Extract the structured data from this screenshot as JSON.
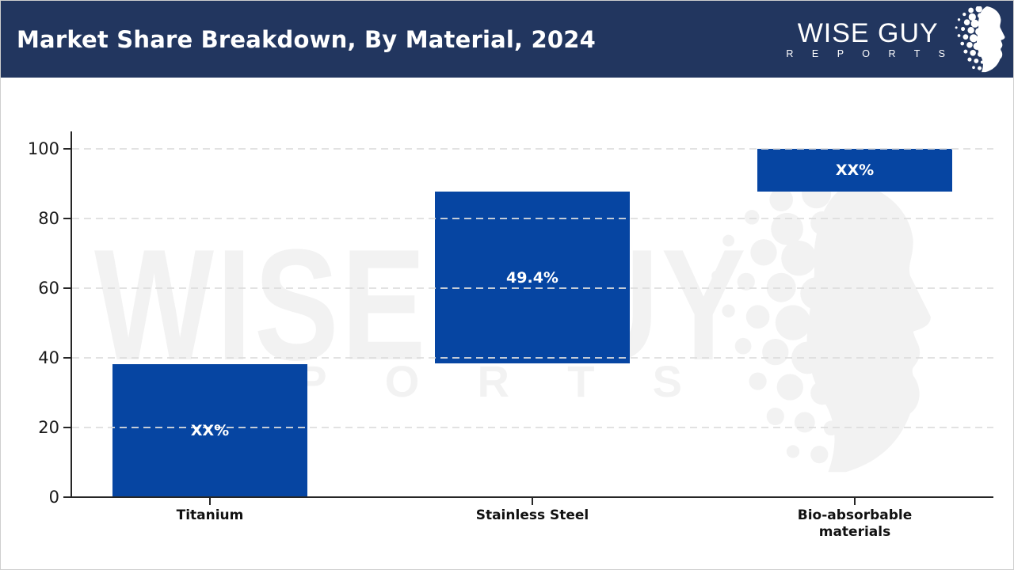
{
  "header": {
    "title": "Market Share Breakdown, By Material, 2024",
    "logo": {
      "name": "WISE GUY",
      "tagline": "R E P O R T S"
    }
  },
  "watermark": {
    "name": "WISE GUY",
    "tagline_letters": [
      "R",
      "E",
      "P",
      "O",
      "R",
      "T",
      "S"
    ]
  },
  "chart_data": {
    "type": "bar",
    "subtype": "floating-waterfall",
    "title": "Market Share Breakdown, By Material, 2024",
    "categories": [
      "Titanium",
      "Stainless Steel",
      "Bio-absorbable materials"
    ],
    "segments": [
      {
        "category": "Titanium",
        "start": 0,
        "end": 38.2,
        "label": "XX%"
      },
      {
        "category": "Stainless Steel",
        "start": 38.3,
        "end": 87.7,
        "label": "49.4%"
      },
      {
        "category": "Bio-absorbable materials",
        "start": 87.7,
        "end": 100,
        "label": "XX%"
      }
    ],
    "xlabel": "",
    "ylabel": "",
    "yticks": [
      0,
      20,
      40,
      60,
      80,
      100
    ],
    "ylim": [
      0,
      105
    ],
    "grid": "horizontal dashed, rendered above bars",
    "legend": "none"
  },
  "colors": {
    "header_bg": "#22365f",
    "bar": "#0645a2",
    "grid": "#dedede",
    "axis": "#262626",
    "tick_text": "#1a1a1a",
    "watermark": "#f2f2f2",
    "page_bg": "#ffffff"
  }
}
